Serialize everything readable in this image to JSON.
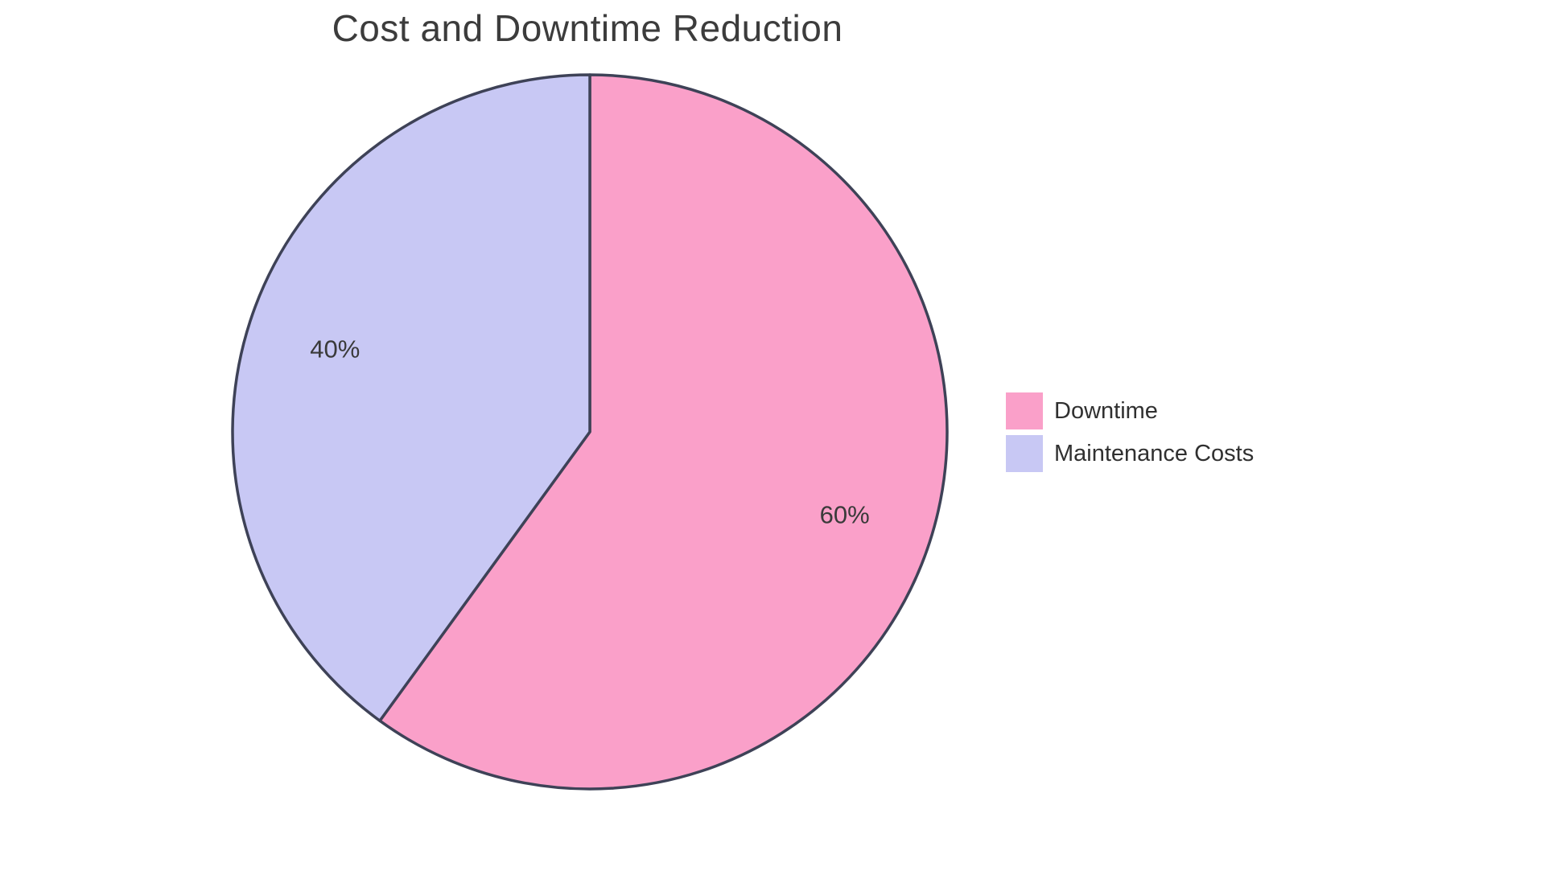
{
  "page": {
    "background_color": "#FFFFFF"
  },
  "chart_data": {
    "type": "pie",
    "title": "Cost and Downtime Reduction",
    "slices": [
      {
        "label": "Downtime",
        "value": 60,
        "display": "60%",
        "color": "#FAA0C9"
      },
      {
        "label": "Maintenance Costs",
        "value": 40,
        "display": "40%",
        "color": "#C8C8F4"
      }
    ],
    "start_angle_deg": 0,
    "direction": "clockwise",
    "stroke_color": "#3E4257",
    "slice_label_color": "#3A3A3A",
    "title_color": "#3C3C3C",
    "legend_text_color": "#303030",
    "legend_position": "right",
    "grid": false
  }
}
